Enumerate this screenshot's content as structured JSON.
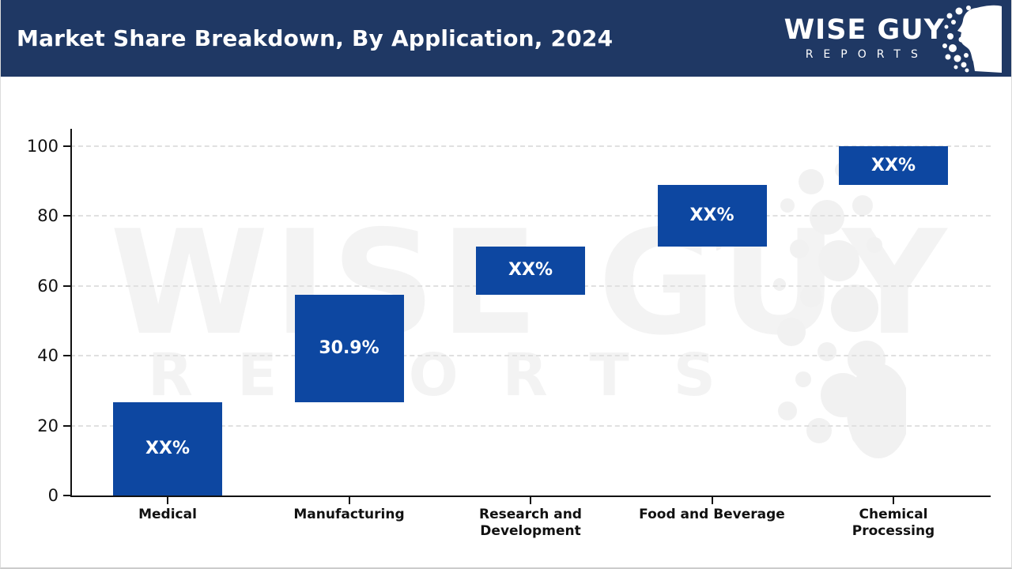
{
  "header": {
    "title": "Market Share Breakdown, By Application, 2024",
    "logo": {
      "line1": "WISE GUY",
      "line2": "REPORTS"
    }
  },
  "watermark": {
    "line1": "WISE GUY",
    "line2": "REPORTS"
  },
  "colors": {
    "header_bg": "#1f3864",
    "bar": "#0d47a1",
    "bar_label": "#ffffff",
    "grid": "#e0e0e0",
    "axis": "#111111",
    "watermark": "#f3f3f3"
  },
  "chart_data": {
    "type": "bar",
    "subtype": "waterfall",
    "title": "Market Share Breakdown, By Application, 2024",
    "categories": [
      "Medical",
      "Manufacturing",
      "Research and\nDevelopment",
      "Food and Beverage",
      "Chemical\nProcessing"
    ],
    "values": [
      26.6,
      30.9,
      13.8,
      17.6,
      11.1
    ],
    "baselines": [
      0,
      26.6,
      57.5,
      71.3,
      88.9
    ],
    "bar_labels": [
      "XX%",
      "30.9%",
      "XX%",
      "XX%",
      "XX%"
    ],
    "xlabel": "",
    "ylabel": "",
    "ylim": [
      0,
      100
    ],
    "yticks": [
      0,
      20,
      40,
      60,
      80,
      100
    ],
    "grid": "horizontal-dashed",
    "legend": "none"
  }
}
